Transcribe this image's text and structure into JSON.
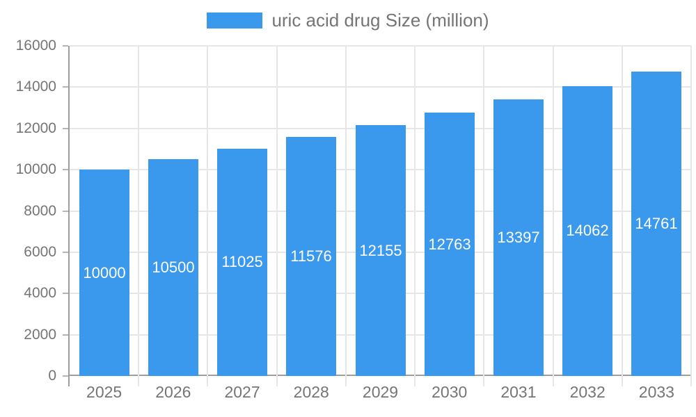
{
  "legend": {
    "label": "uric acid drug Size (million)",
    "swatch_color": "#3a99ec"
  },
  "chart_data": {
    "type": "bar",
    "title": "",
    "categories": [
      "2025",
      "2026",
      "2027",
      "2028",
      "2029",
      "2030",
      "2031",
      "2032",
      "2033"
    ],
    "series": [
      {
        "name": "uric acid drug Size (million)",
        "values": [
          10000,
          10500,
          11025,
          11576,
          12155,
          12763,
          13397,
          14062,
          14761
        ]
      }
    ],
    "xlabel": "",
    "ylabel": "",
    "ylim": [
      0,
      16000
    ],
    "ytick_step": 2000,
    "ytick_labels": [
      "0",
      "2000",
      "4000",
      "6000",
      "8000",
      "10000",
      "12000",
      "14000",
      "16000"
    ],
    "grid": true,
    "legend_position": "top",
    "bar_color": "#3a99ec",
    "bar_label_color": "#ffffff",
    "bar_labels_inside": true
  },
  "colors": {
    "axis": "#9e9e9e",
    "gridline": "#e6e6e6",
    "axis_text": "#757575",
    "background": "#ffffff"
  }
}
